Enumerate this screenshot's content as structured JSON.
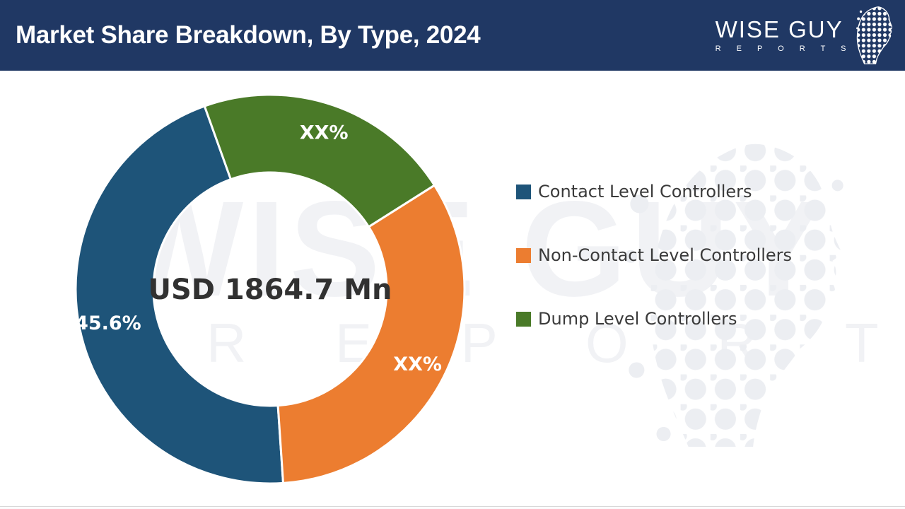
{
  "header": {
    "title": "Market Share Breakdown, By Type, 2024",
    "logo": {
      "line1": "WISE GUY",
      "line2": "R E P O R T S"
    }
  },
  "watermark": {
    "line1": "WISE GUY",
    "line2": "R E P O R T S"
  },
  "chart_data": {
    "type": "pie",
    "subtype": "donut",
    "title": "Market Share Breakdown, By Type, 2024",
    "center_label": "USD 1864.7 Mn",
    "legend_position": "right",
    "direction": "counterclockwise",
    "start_angle_deg": 109.7,
    "segments": [
      {
        "name": "Contact Level Controllers",
        "label": "45.6%",
        "value_pct": 45.6,
        "color": "#1e5479"
      },
      {
        "name": "Non-Contact Level Controllers",
        "label": "XX%",
        "value_pct": 32.9,
        "color": "#ec7d30"
      },
      {
        "name": "Dump Level Controllers",
        "label": "XX%",
        "value_pct": 21.5,
        "color": "#4a7a28"
      }
    ]
  }
}
